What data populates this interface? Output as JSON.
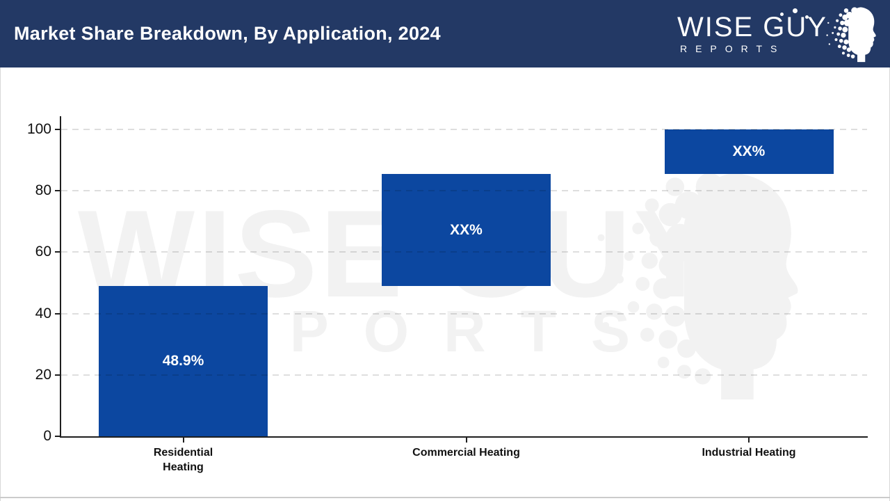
{
  "header": {
    "title": "Market Share Breakdown, By Application, 2024",
    "bg_color": "#233965",
    "logo": {
      "line1": "WISE GUY",
      "line2": "REPORTS"
    }
  },
  "watermark": {
    "line1": "WISE GUY",
    "line2": "REPORTS"
  },
  "chart_data": {
    "type": "bar",
    "subtype": "floating-waterfall",
    "title": "Market Share Breakdown, By Application, 2024",
    "xlabel": "",
    "ylabel": "",
    "ylim": [
      0,
      100
    ],
    "yticks": [
      0,
      20,
      40,
      60,
      80,
      100
    ],
    "grid": "horizontal-dashed",
    "bar_color": "#0c47a0",
    "label_color": "#ffffff",
    "categories": [
      "Residential\nHeating",
      "Commercial Heating",
      "Industrial Heating"
    ],
    "segments": [
      {
        "category": "Residential Heating",
        "base": 0,
        "top": 48.9,
        "label": "48.9%"
      },
      {
        "category": "Commercial Heating",
        "base": 48.9,
        "top": 85.5,
        "label": "XX%"
      },
      {
        "category": "Industrial Heating",
        "base": 85.5,
        "top": 100,
        "label": "XX%"
      }
    ]
  }
}
